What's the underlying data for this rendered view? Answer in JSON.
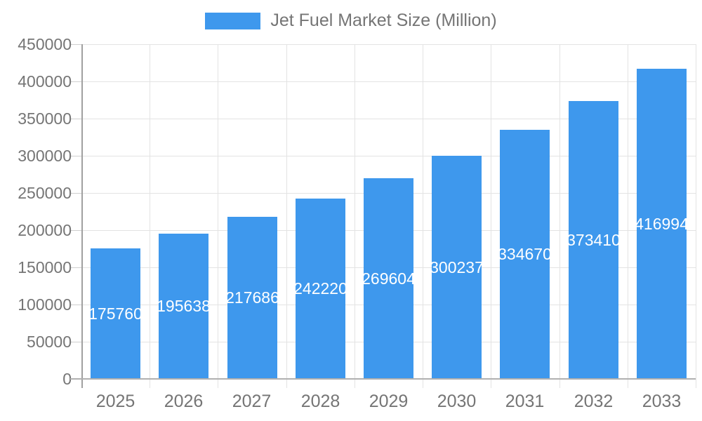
{
  "legend": {
    "label": "Jet Fuel Market Size (Million)"
  },
  "colors": {
    "bar": "#3E98ED",
    "bar_label_text": "#FFFFFF",
    "axis_text": "#757575",
    "grid_line": "#E3E3E3",
    "y_axis_line": "#A0A0A0",
    "x_axis_line": "#B0B0B0",
    "tick_line": "#CFCFCF",
    "background": "#FFFFFF"
  },
  "chart_data": {
    "type": "bar",
    "title": "Jet Fuel Market Size (Million)",
    "categories": [
      "2025",
      "2026",
      "2027",
      "2028",
      "2029",
      "2030",
      "2031",
      "2032",
      "2033"
    ],
    "values": [
      175760,
      195638,
      217686,
      242220,
      269604,
      300237,
      334670,
      373410,
      416994
    ],
    "series": [
      {
        "name": "Jet Fuel Market Size (Million)",
        "values": [
          175760,
          195638,
          217686,
          242220,
          269604,
          300237,
          334670,
          373410,
          416994
        ]
      }
    ],
    "xlabel": "",
    "ylabel": "",
    "ylim": [
      0,
      450000
    ],
    "ytick_step": 50000,
    "yticks": [
      0,
      50000,
      100000,
      150000,
      200000,
      250000,
      300000,
      350000,
      400000,
      450000
    ],
    "grid": true,
    "legend_position": "top",
    "value_labels": "inside-center"
  }
}
